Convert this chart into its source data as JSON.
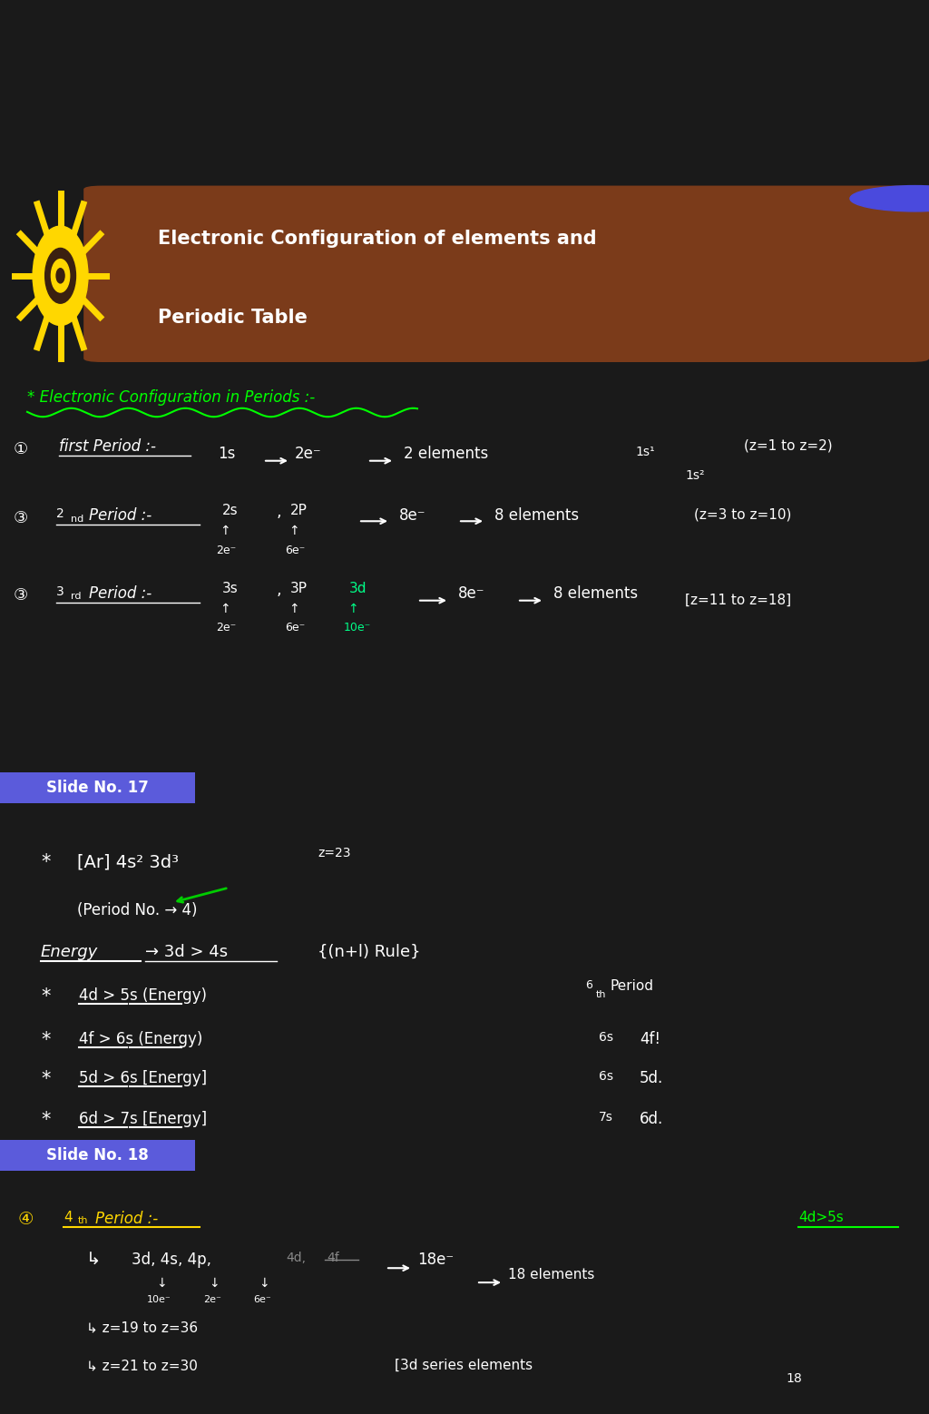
{
  "title_line1": "Electronic Configuration of elements and",
  "title_line2": "Periodic Table",
  "slide1_bg": "#1a1a1a",
  "slide1_header_bg": "#7B3B1A",
  "header_text_color": "#ffffff",
  "content_color": "#ffffff",
  "green_text": "#00ff00",
  "green2_text": "#00ff88",
  "slide17_label": "Slide No. 17",
  "slide18_label": "Slide No. 18",
  "label_bg": "#5b5bdb",
  "slide2_bg": "#0d0d0d",
  "yellow": "#FFD700",
  "green_label": "#00ff00",
  "icon_color": "#FFD700",
  "toolbar_bg": "#d0d0d0"
}
